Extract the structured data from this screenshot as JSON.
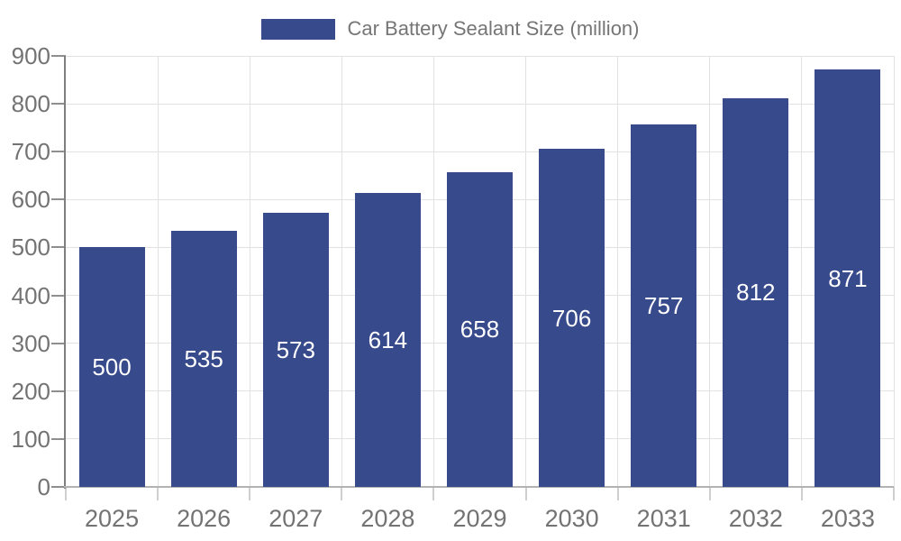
{
  "legend": {
    "label": "Car Battery Sealant Size (million)"
  },
  "colors": {
    "bar": "#374A8B",
    "bar_label": "#ffffff",
    "axis_label": "#737373",
    "legend_text": "#757575",
    "grid": "#e2e2e2",
    "y_axis_line": "#7f7f7f",
    "x_axis_line": "#b3b3b3",
    "x_tick": "#cfcfcf",
    "y_tick": "#8f8f8f",
    "background": "#ffffff"
  },
  "chart_data": {
    "type": "bar",
    "title": "Car Battery Sealant Size (million)",
    "categories": [
      "2025",
      "2026",
      "2027",
      "2028",
      "2029",
      "2030",
      "2031",
      "2032",
      "2033"
    ],
    "series": [
      {
        "name": "Car Battery Sealant Size (million)",
        "values": [
          500,
          535,
          573,
          614,
          658,
          706,
          757,
          812,
          871
        ]
      }
    ],
    "values": [
      500,
      535,
      573,
      614,
      658,
      706,
      757,
      812,
      871
    ],
    "xlabel": "",
    "ylabel": "",
    "ylim": [
      0,
      900
    ],
    "yticks": [
      0,
      100,
      200,
      300,
      400,
      500,
      600,
      700,
      800,
      900
    ],
    "grid": "horizontal-and-vertical",
    "legend_position": "top-center",
    "value_label_position": "inside-center"
  }
}
